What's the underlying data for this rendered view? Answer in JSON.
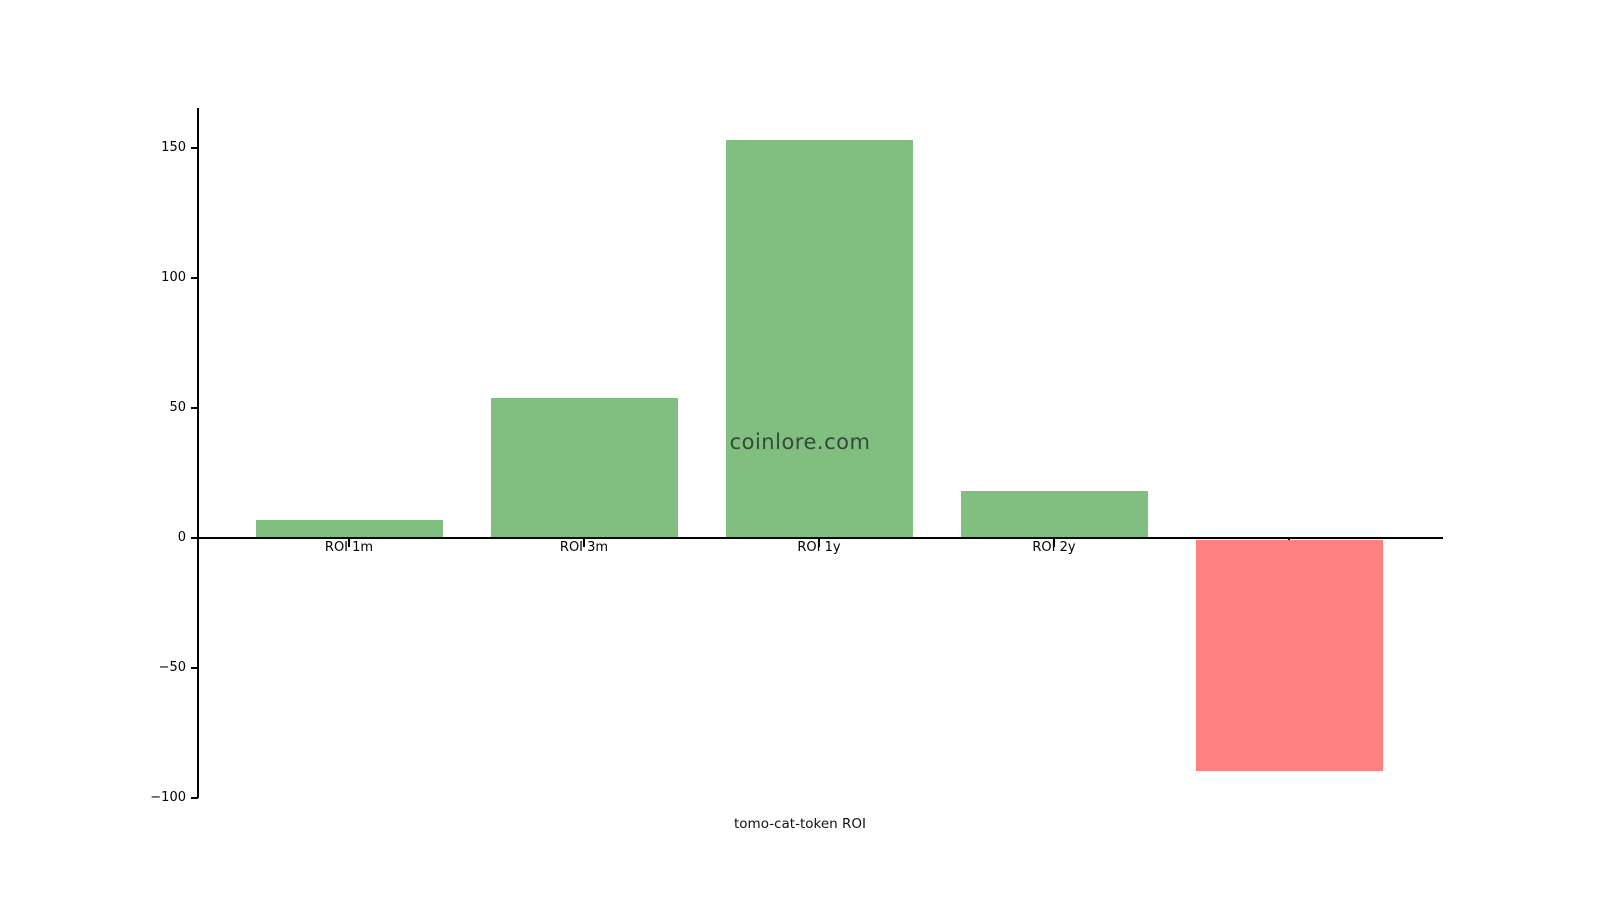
{
  "page": {
    "background_color": "#ffffff"
  },
  "watermark": {
    "text": "coinlore.com",
    "color": "#2a3830"
  },
  "chart_data": {
    "type": "bar",
    "title": "tomo-cat-token ROI",
    "title_position": "bottom-center",
    "categories": [
      "ROI 1m",
      "ROI 3m",
      "ROI 1y",
      "ROI 2y",
      ""
    ],
    "values": [
      7,
      54,
      153,
      18,
      -89
    ],
    "bar_colors": [
      "#80bf80",
      "#80bf80",
      "#80bf80",
      "#80bf80",
      "#ff8080"
    ],
    "positive_color": "#80bf80",
    "negative_color": "#ff8080",
    "y_ticks": [
      150,
      100,
      50,
      0,
      -50,
      -100
    ],
    "y_tick_labels": [
      "150",
      "100",
      "50",
      "0",
      "−50",
      "−100"
    ],
    "ylim": [
      -112,
      165
    ],
    "xlabel": "",
    "ylabel": "",
    "grid": false,
    "legend": "none",
    "axis_color": "#000000",
    "baseline_at_zero": true
  }
}
